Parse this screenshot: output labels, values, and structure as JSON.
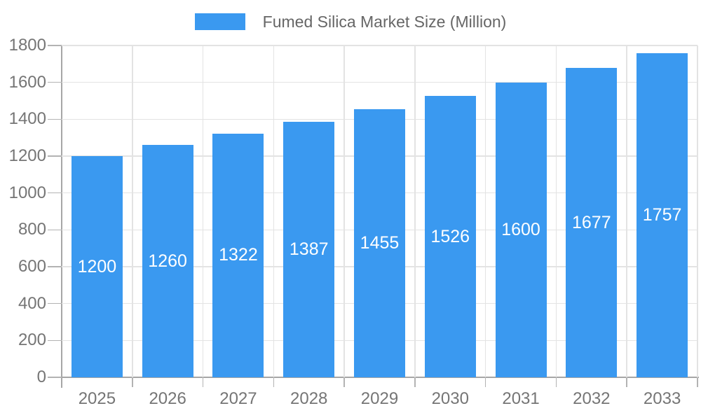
{
  "legend": {
    "label": "Fumed Silica Market Size (Million)"
  },
  "colors": {
    "accent": "#3a99f0",
    "grid_line": "#e3e3e3",
    "axis_line": "#a6a6a6",
    "tick_line": "#b3b3b3",
    "axis_text": "#757575",
    "legend_text": "#666666",
    "bar_label_text": "#ffffff",
    "background": "#ffffff"
  },
  "chart_data": {
    "type": "bar",
    "title": "Fumed Silica Market Size (Million)",
    "series_name": "Fumed Silica Market Size (Million)",
    "categories": [
      "2025",
      "2026",
      "2027",
      "2028",
      "2029",
      "2030",
      "2031",
      "2032",
      "2033"
    ],
    "values": [
      1200,
      1260,
      1322,
      1387,
      1455,
      1526,
      1600,
      1677,
      1757
    ],
    "xlabel": "",
    "ylabel": "",
    "ylim": [
      0,
      1800
    ],
    "yticks": [
      0,
      200,
      400,
      600,
      800,
      1000,
      1200,
      1400,
      1600,
      1800
    ],
    "grid": true,
    "legend_position": "top",
    "bar_color": "#3a99f0",
    "value_labels": "inside-center-white"
  }
}
